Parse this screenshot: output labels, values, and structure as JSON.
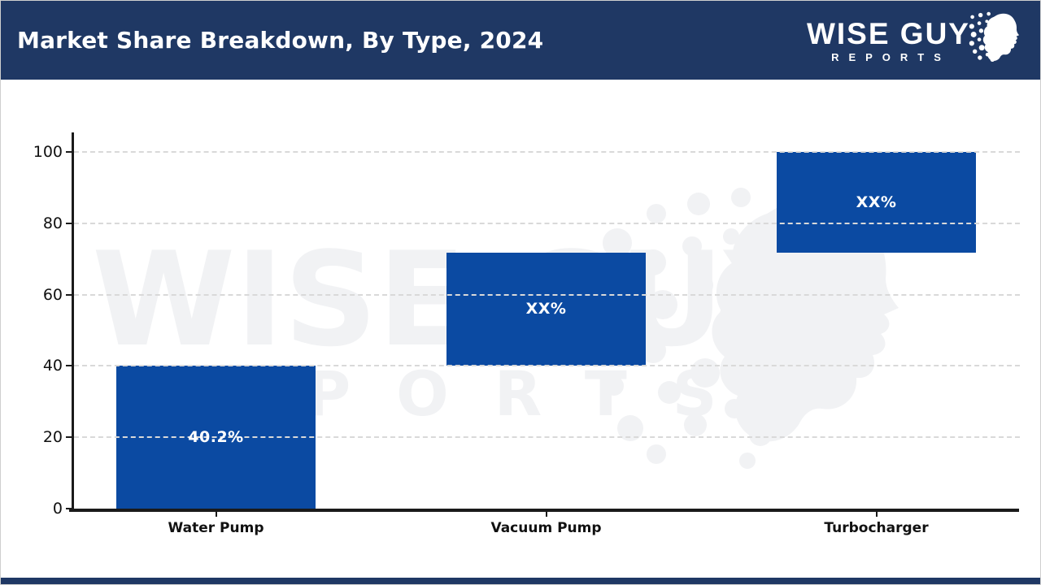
{
  "header": {
    "title": "Market Share Breakdown, By Type, 2024",
    "logo": {
      "line1": "WISE GUY",
      "line2": "REPORTS"
    }
  },
  "watermark": {
    "line1": "WISE GUY",
    "line2": "REPORTS"
  },
  "colors": {
    "header_bg": "#1f3864",
    "footer_bg": "#1f3864",
    "bar": "#0b4aa2",
    "grid": "#d9d9d9",
    "axis": "#1a1a1a",
    "watermark": "#f1f2f4",
    "value_label": "#ffffff"
  },
  "chart_data": {
    "type": "bar",
    "subtype": "floating-segmented-bars-waterfall",
    "title": "Market Share Breakdown, By Type, 2024",
    "categories": [
      "Water Pump",
      "Vacuum Pump",
      "Turbocharger"
    ],
    "segments": [
      {
        "category": "Water Pump",
        "start": 0,
        "end": 40.2,
        "label": "40.2%"
      },
      {
        "category": "Vacuum Pump",
        "start": 40.2,
        "end": 71.8,
        "label": "XX%"
      },
      {
        "category": "Turbocharger",
        "start": 71.8,
        "end": 100,
        "label": "XX%"
      }
    ],
    "xlabel": "",
    "ylabel": "",
    "ylim": [
      0,
      105
    ],
    "yticks": [
      0,
      20,
      40,
      60,
      80,
      100
    ],
    "grid": "horizontal-dashed",
    "legend": "none",
    "bar_color": "#0b4aa2",
    "value_label_color": "#ffffff"
  }
}
